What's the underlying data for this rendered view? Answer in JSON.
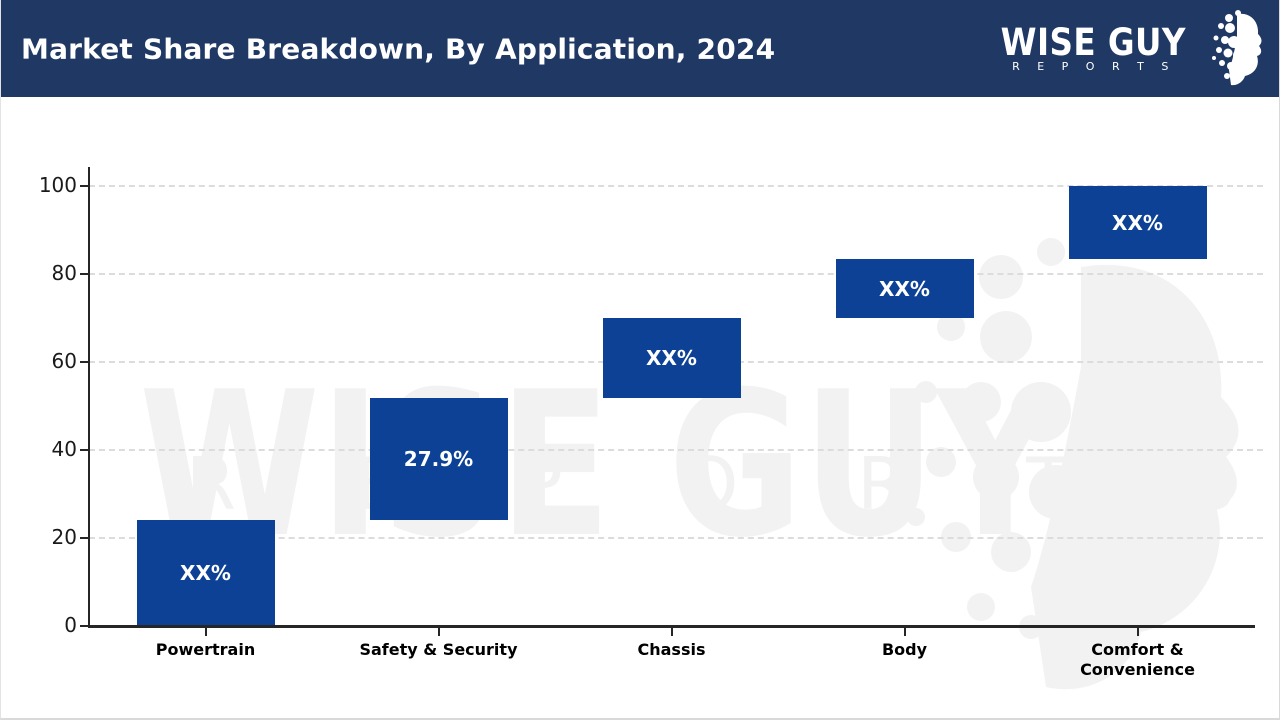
{
  "header": {
    "title": "Market Share Breakdown, By Application, 2024",
    "bg_color": "#1f3864",
    "logo": {
      "line1": "WISE GUY",
      "line2": "R E P O R T S"
    }
  },
  "watermark": {
    "line1": "WISE GUY",
    "line2": "R E P O R T S"
  },
  "chart_data": {
    "type": "bar",
    "subtype": "waterfall",
    "title": "Market Share Breakdown, By Application, 2024",
    "categories": [
      "Powertrain",
      "Safety & Security",
      "Chassis",
      "Body",
      "Comfort & Convenience"
    ],
    "segments": [
      {
        "label": "XX%",
        "start": 0,
        "end": 24
      },
      {
        "label": "27.9%",
        "start": 24,
        "end": 51.9
      },
      {
        "label": "XX%",
        "start": 51.9,
        "end": 69.9
      },
      {
        "label": "XX%",
        "start": 69.9,
        "end": 83.4
      },
      {
        "label": "XX%",
        "start": 83.4,
        "end": 100
      }
    ],
    "ylim": [
      0,
      100
    ],
    "yticks": [
      0,
      20,
      40,
      60,
      80,
      100
    ],
    "grid": "horizontal dashed",
    "legend": "none",
    "bar_color": "#0c4195",
    "bar_label_color": "#ffffff",
    "axis_color": "#262626",
    "grid_color": "#dcdcdc"
  }
}
